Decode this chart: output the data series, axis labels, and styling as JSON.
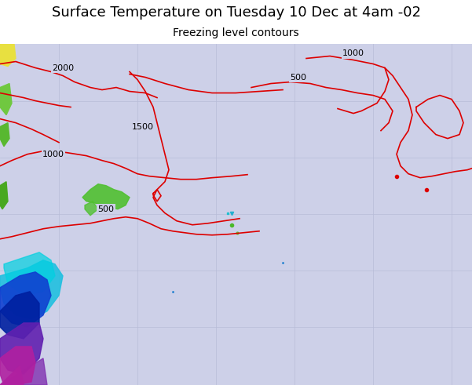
{
  "title": "Surface Temperature on Tuesday 10 Dec at 4am -02",
  "subtitle": "Freezing level contours",
  "title_fontsize": 13,
  "subtitle_fontsize": 10,
  "ocean_color": "#cdd0e8",
  "contour_color": "#dd0000",
  "contour_linewidth": 1.2,
  "contour_label_fontsize": 8,
  "grid_color": "#b8bcd8",
  "fig_bg": "#ffffff",
  "figwidth": 6.01,
  "figheight": 4.91,
  "dpi": 100
}
